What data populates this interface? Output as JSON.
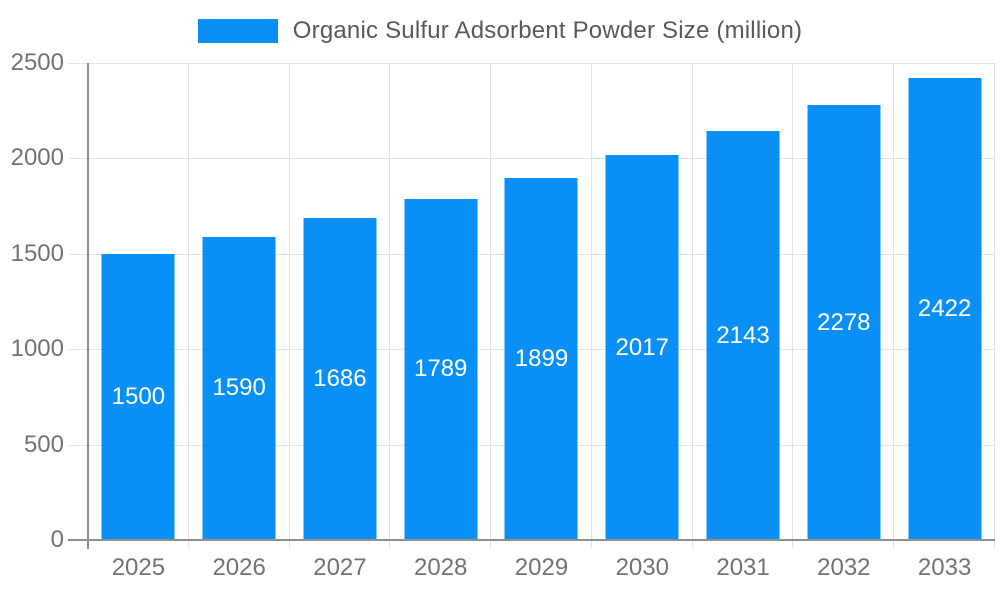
{
  "legend": {
    "label": "Organic Sulfur Adsorbent Powder Size (million)"
  },
  "chart_data": {
    "type": "bar",
    "title": "Organic Sulfur Adsorbent Powder Size (million)",
    "categories": [
      "2025",
      "2026",
      "2027",
      "2028",
      "2029",
      "2030",
      "2031",
      "2032",
      "2033"
    ],
    "values": [
      1500,
      1590,
      1686,
      1789,
      1899,
      2017,
      2143,
      2278,
      2422
    ],
    "xlabel": "",
    "ylabel": "",
    "ylim": [
      0,
      2500
    ],
    "yticks": [
      0,
      500,
      1000,
      1500,
      2000,
      2500
    ],
    "grid": true,
    "legend_position": "top",
    "bar_value_labels": "inside-center",
    "colors": {
      "bar": "#0990f8",
      "bar_label_text": "#ffffff",
      "axis_text": "#737373",
      "legend_text": "#595959",
      "gridline": "#e2e2e2",
      "axis_line": "#8f8f8f",
      "background": "#ffffff"
    }
  }
}
